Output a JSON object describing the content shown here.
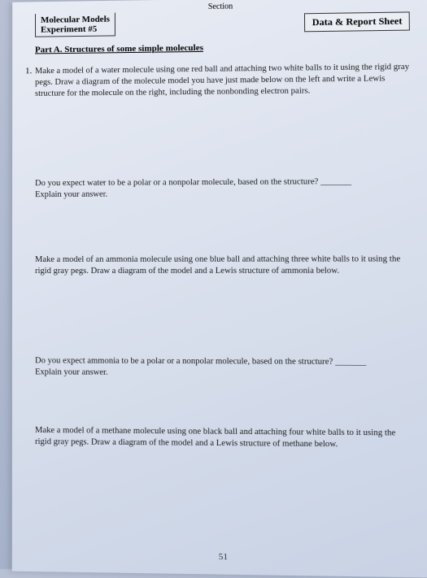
{
  "header": {
    "title_line1": "Molecular Models",
    "title_line2": "Experiment #5",
    "section_label": "Section",
    "report_label": "Data & Report Sheet"
  },
  "part_title": "Part A. Structures of some simple molecules",
  "question_number": "1.",
  "paragraphs": {
    "water_intro": "Make a model of a water molecule using one red ball and attaching two white balls to it using the rigid gray pegs. Draw a diagram of the molecule model you have just made below on the left and write a Lewis structure for the molecule on the right, including the nonbonding electron pairs.",
    "water_polar_q": "Do you expect water to be a polar or a nonpolar molecule, based on the structure?",
    "explain": "Explain your answer.",
    "ammonia_intro": "Make a model of an ammonia molecule using one blue ball and attaching three white balls to it using the rigid gray pegs. Draw a diagram of the model and a Lewis structure of ammonia below.",
    "ammonia_polar_q": "Do you expect ammonia to be a polar or a nonpolar molecule, based on the structure?",
    "methane_intro": "Make a model of a methane molecule using one black ball and attaching four white balls to it using the rigid gray pegs. Draw a diagram of the model and a Lewis structure of methane below."
  },
  "page_number": "51",
  "colors": {
    "text": "#1a1a1a",
    "page_bg_start": "#e8ecf4",
    "page_bg_end": "#c8d2e4",
    "border": "#333333"
  }
}
